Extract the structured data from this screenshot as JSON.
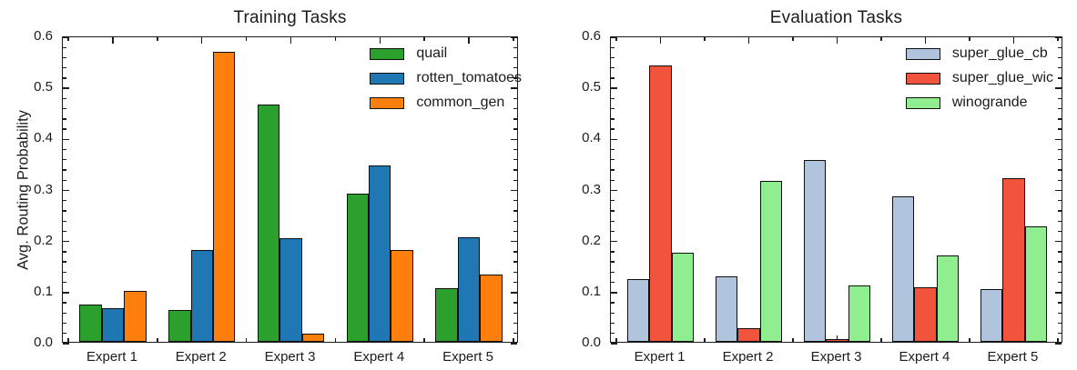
{
  "figure": {
    "background": "#ffffff",
    "text_color": "#1c1c1c"
  },
  "chart_data": [
    {
      "type": "bar",
      "title": "Training Tasks",
      "xlabel": "",
      "ylabel": "Avg. Routing Probability",
      "categories": [
        "Expert 1",
        "Expert 2",
        "Expert 3",
        "Expert 4",
        "Expert 5"
      ],
      "series": [
        {
          "name": "quail",
          "color": "#2ca02c",
          "values": [
            0.073,
            0.063,
            0.465,
            0.29,
            0.105
          ]
        },
        {
          "name": "rotten_tomatoes",
          "color": "#1f77b4",
          "values": [
            0.066,
            0.18,
            0.203,
            0.345,
            0.205
          ]
        },
        {
          "name": "common_gen",
          "color": "#ff7f0e",
          "values": [
            0.1,
            0.568,
            0.016,
            0.18,
            0.132
          ]
        }
      ],
      "ylim": [
        0.0,
        0.6
      ],
      "yticks": [
        0.0,
        0.1,
        0.2,
        0.3,
        0.4,
        0.5,
        0.6
      ],
      "ytick_labels": [
        "0.0",
        "0.1",
        "0.2",
        "0.3",
        "0.4",
        "0.5",
        "0.6"
      ],
      "minor_tick_interval": 0.02,
      "grid": false,
      "legend_position": "upper right",
      "bar_edge_color": "#101010",
      "ticks_direction": "in"
    },
    {
      "type": "bar",
      "title": "Evaluation Tasks",
      "xlabel": "",
      "ylabel": "",
      "categories": [
        "Expert 1",
        "Expert 2",
        "Expert 3",
        "Expert 4",
        "Expert 5"
      ],
      "series": [
        {
          "name": "super_glue_cb",
          "color": "#b0c4de",
          "values": [
            0.122,
            0.129,
            0.357,
            0.285,
            0.104
          ]
        },
        {
          "name": "super_glue_wic",
          "color": "#f2533d",
          "values": [
            0.542,
            0.027,
            0.006,
            0.107,
            0.32
          ]
        },
        {
          "name": "winogrande",
          "color": "#90ee90",
          "values": [
            0.174,
            0.315,
            0.11,
            0.17,
            0.226
          ]
        }
      ],
      "ylim": [
        0.0,
        0.6
      ],
      "yticks": [
        0.0,
        0.1,
        0.2,
        0.3,
        0.4,
        0.5,
        0.6
      ],
      "ytick_labels": [
        "0.0",
        "0.1",
        "0.2",
        "0.3",
        "0.4",
        "0.5",
        "0.6"
      ],
      "minor_tick_interval": 0.02,
      "grid": false,
      "legend_position": "upper right",
      "bar_edge_color": "#101010",
      "ticks_direction": "in"
    }
  ]
}
